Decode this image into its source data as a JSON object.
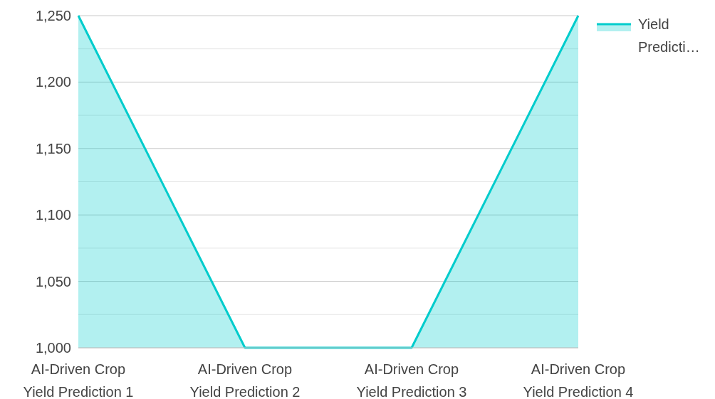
{
  "chart_data": {
    "type": "area",
    "categories": [
      "AI-Driven Crop Yield Prediction 1",
      "AI-Driven Crop Yield Prediction 2",
      "AI-Driven Crop Yield Prediction 3",
      "AI-Driven Crop Yield Prediction 4"
    ],
    "series": [
      {
        "name": "Yield Predicti…",
        "color": "#00cccc",
        "values": [
          1250,
          1000,
          1000,
          1250
        ]
      }
    ],
    "ylim": [
      1000,
      1250
    ],
    "yticks": [
      {
        "value": 1000,
        "label": "1,000"
      },
      {
        "value": 1025,
        "label": null
      },
      {
        "value": 1050,
        "label": "1,050"
      },
      {
        "value": 1075,
        "label": null
      },
      {
        "value": 1100,
        "label": "1,100"
      },
      {
        "value": 1125,
        "label": null
      },
      {
        "value": 1150,
        "label": "1,150"
      },
      {
        "value": 1175,
        "label": null
      },
      {
        "value": 1200,
        "label": "1,200"
      },
      {
        "value": 1225,
        "label": null
      },
      {
        "value": 1250,
        "label": "1,250"
      }
    ],
    "grid": "y",
    "legend": "top right"
  }
}
